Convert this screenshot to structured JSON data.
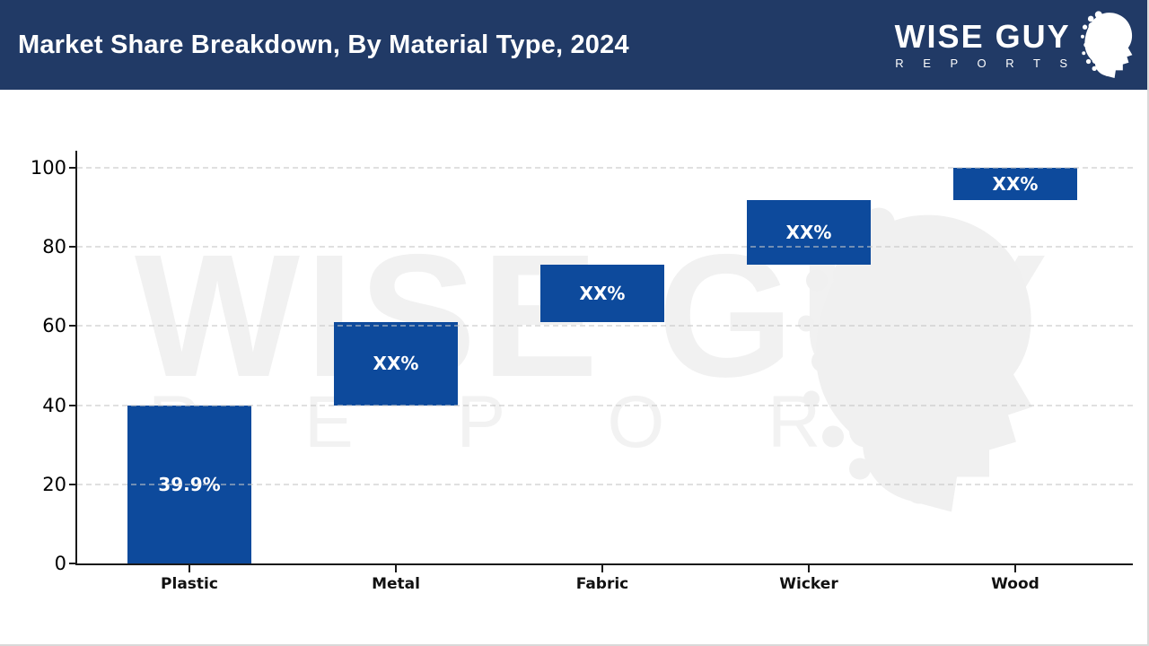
{
  "header": {
    "title": "Market Share Breakdown, By Material Type, 2024",
    "logo": {
      "name_line": "WISE GUY",
      "sub_line": "R E P O R T S"
    }
  },
  "watermark": {
    "name_line": "WISE GUY",
    "sub_line": "REPORTS"
  },
  "chart_data": {
    "type": "bar",
    "variant": "waterfall",
    "title": "Market Share Breakdown, By Material Type, 2024",
    "xlabel": "",
    "ylabel": "",
    "categories": [
      "Plastic",
      "Metal",
      "Fabric",
      "Wicker",
      "Wood"
    ],
    "segments": [
      {
        "category": "Plastic",
        "start": 0,
        "end": 39.9,
        "label": "39.9%"
      },
      {
        "category": "Metal",
        "start": 39.9,
        "end": 61.1,
        "label": "XX%"
      },
      {
        "category": "Fabric",
        "start": 61.1,
        "end": 75.4,
        "label": "XX%"
      },
      {
        "category": "Wicker",
        "start": 75.4,
        "end": 91.8,
        "label": "XX%"
      },
      {
        "category": "Wood",
        "start": 91.8,
        "end": 100,
        "label": "XX%"
      }
    ],
    "yticks": [
      0,
      20,
      40,
      60,
      80,
      100
    ],
    "ylim": [
      0,
      105
    ],
    "grid": {
      "horizontal": true,
      "style": "dashed"
    },
    "legend": "none",
    "colors": {
      "bar": "#0d4a9c",
      "bar_label": "#ffffff",
      "header_bg": "#213a66",
      "header_text": "#ffffff",
      "axis": "#1a1a1a",
      "gridline": "#e2e2e2",
      "watermark": "#f0f0f0"
    }
  }
}
